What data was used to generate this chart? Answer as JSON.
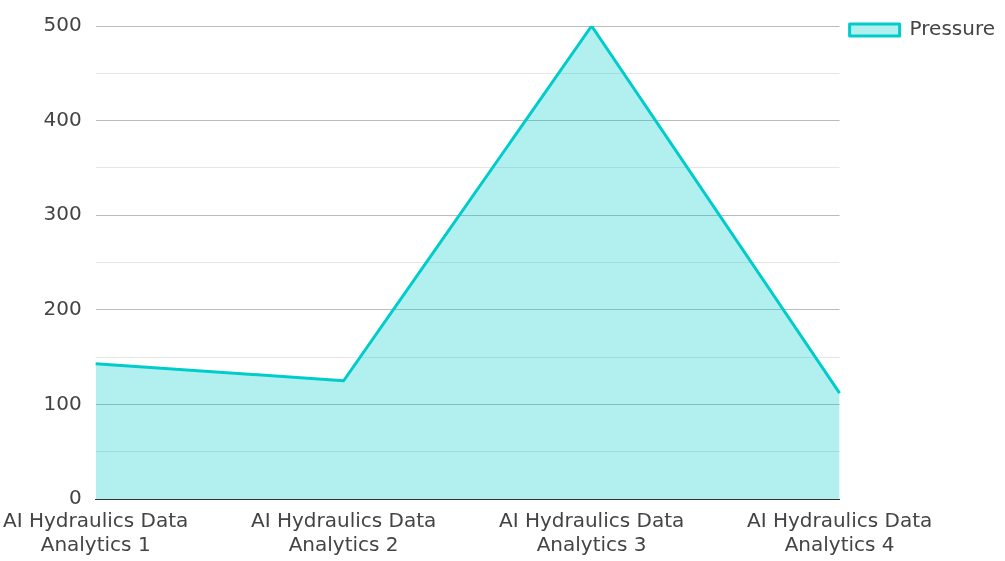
{
  "chart_data": {
    "type": "area",
    "categories": [
      "AI Hydraulics Data Analytics 1",
      "AI Hydraulics Data Analytics 2",
      "AI Hydraulics Data Analytics 3",
      "AI Hydraulics Data Analytics 4"
    ],
    "series": [
      {
        "name": "Pressure",
        "color": "#00cccc",
        "values": [
          143,
          125,
          500,
          112
        ]
      }
    ],
    "ylim": [
      0,
      500
    ],
    "yticks": [
      0,
      {
        "value": 50,
        "label": null
      },
      100,
      {
        "value": 150,
        "label": null
      },
      200,
      {
        "value": 250,
        "label": null
      },
      300,
      {
        "value": 350,
        "label": null
      },
      400,
      {
        "value": 450,
        "label": null
      },
      500
    ],
    "grid": "y",
    "legend": "top right"
  }
}
